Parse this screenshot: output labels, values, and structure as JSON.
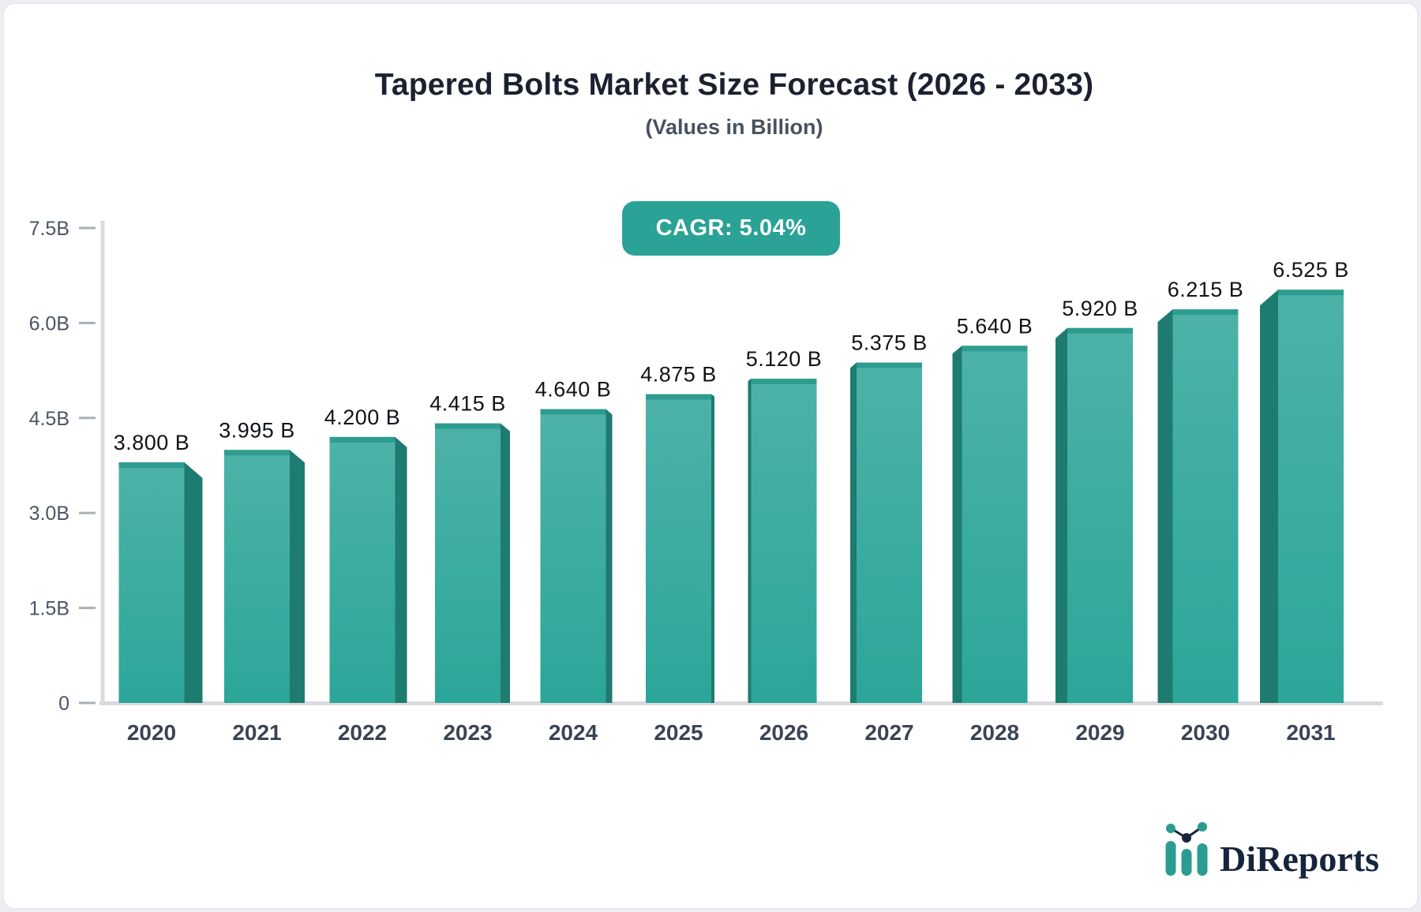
{
  "header": {
    "title": "Tapered Bolts Market Size Forecast (2026 - 2033)",
    "subtitle": "(Values in Billion)"
  },
  "badge": {
    "label": "CAGR: 5.04%",
    "background": "#2aa296",
    "text_color": "#ffffff"
  },
  "chart_data": {
    "type": "bar",
    "title": "Tapered Bolts Market Size Forecast (2026 - 2033)",
    "subtitle": "(Values in Billion)",
    "cagr": "5.04%",
    "categories": [
      "2020",
      "2021",
      "2022",
      "2023",
      "2024",
      "2025",
      "2026",
      "2027",
      "2028",
      "2029",
      "2030",
      "2031"
    ],
    "values": [
      3.8,
      3.995,
      4.2,
      4.415,
      4.64,
      4.875,
      5.12,
      5.375,
      5.64,
      5.92,
      6.215,
      6.525
    ],
    "value_labels": [
      "3.800 B",
      "3.995 B",
      "4.200 B",
      "4.415 B",
      "4.640 B",
      "4.875 B",
      "5.120 B",
      "5.375 B",
      "5.640 B",
      "5.920 B",
      "6.215 B",
      "6.525 B"
    ],
    "unit": "Billion",
    "xlabel": "",
    "ylabel": "",
    "ylim": [
      0,
      7.5
    ],
    "yticks": [
      {
        "value": 0.0,
        "label": "0"
      },
      {
        "value": 1.5,
        "label": "1.5B"
      },
      {
        "value": 3.0,
        "label": "3.0B"
      },
      {
        "value": 4.5,
        "label": "4.5B"
      },
      {
        "value": 6.0,
        "label": "6.0B"
      },
      {
        "value": 7.5,
        "label": "7.5B"
      }
    ],
    "grid": false,
    "legend": false,
    "bar_style_3d": true,
    "colors": {
      "face_top": "#4db2a8",
      "face_bottom": "#2ba698",
      "top_edge": "#2f9c90",
      "side": "#1e7b70",
      "axis": "#d7dbe0",
      "tick": "#a9b0b9"
    }
  },
  "logo": {
    "text": "DiReports",
    "icon": "bar-chart-trend-icon",
    "color": "#16243c",
    "accent": "#2b9c92"
  }
}
